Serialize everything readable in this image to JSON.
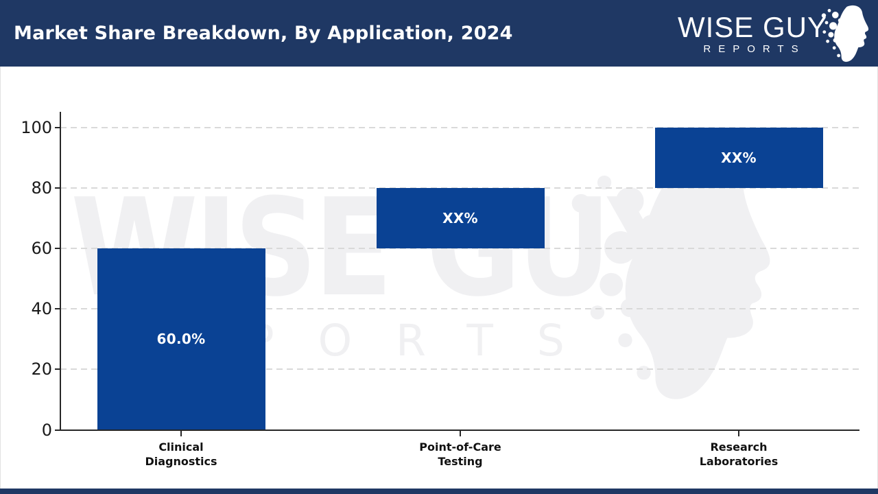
{
  "header": {
    "brand_line1": "WISE GUY",
    "brand_line2": "REPORTS"
  },
  "watermark": {
    "line1": "WISE GUY",
    "line2": "REPORTS"
  },
  "chart_data": {
    "type": "bar",
    "subtype": "waterfall-segments",
    "title": "Market Share Breakdown, By Application, 2024",
    "categories": [
      "Clinical\nDiagnostics",
      "Point-of-Care\nTesting",
      "Research\nLaboratories"
    ],
    "bars": [
      {
        "category": "Clinical Diagnostics",
        "start": 0,
        "end": 60,
        "value_label": "60.0%"
      },
      {
        "category": "Point-of-Care Testing",
        "start": 60,
        "end": 80,
        "value_label": "XX%"
      },
      {
        "category": "Research Laboratories",
        "start": 80,
        "end": 100,
        "value_label": "XX%"
      }
    ],
    "xlabel": "",
    "ylabel": "",
    "y_ticks": [
      0,
      20,
      40,
      60,
      80,
      100
    ],
    "ylim": [
      0,
      105
    ],
    "grid": "horizontal-dashed",
    "legend": "none"
  },
  "colors": {
    "header_bg": "#1f3864",
    "footer_bg": "#1f3864",
    "bar": "#0a4294",
    "bar_value_label": "#ffffff",
    "grid": "#d9d9d9",
    "axis": "#262626",
    "tick_label": "#1a1a1a",
    "watermark": "#f0f0f2"
  }
}
